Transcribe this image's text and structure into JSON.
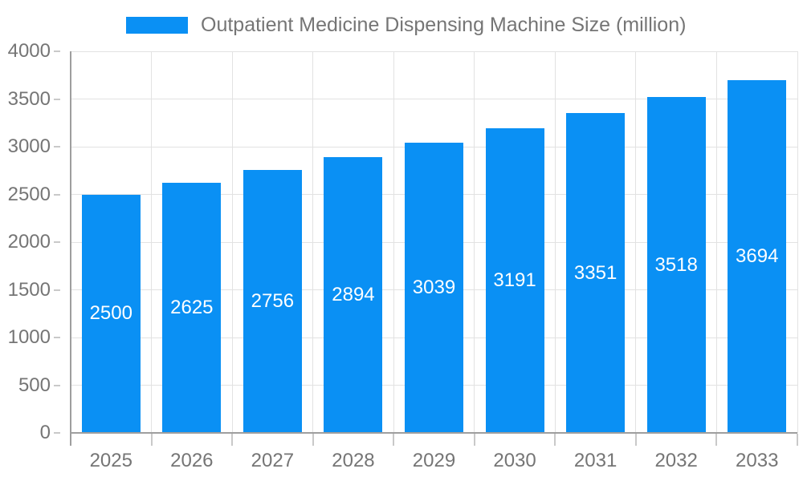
{
  "chart_data": {
    "type": "bar",
    "title": "Outpatient Medicine Dispensing Machine Size (million)",
    "legend": {
      "label": "Outpatient Medicine Dispensing Machine Size (million)",
      "position": "top"
    },
    "categories": [
      "2025",
      "2026",
      "2027",
      "2028",
      "2029",
      "2030",
      "2031",
      "2032",
      "2033"
    ],
    "values": [
      2500,
      2625,
      2756,
      2894,
      3039,
      3191,
      3351,
      3518,
      3694
    ],
    "value_labels": [
      "2500",
      "2625",
      "2756",
      "2894",
      "3039",
      "3191",
      "3351",
      "3518",
      "3694"
    ],
    "value_labels_position": "inside-center",
    "xlabel": "",
    "ylabel": "",
    "ylim": [
      0,
      4000
    ],
    "yticks": [
      0,
      500,
      1000,
      1500,
      2000,
      2500,
      3000,
      3500,
      4000
    ],
    "grid": true,
    "colors": {
      "bar": "#0A90F4",
      "bar_label": "#FFFFFF",
      "axis": "#9E9E9E",
      "grid": "#E2E2E2",
      "tick": "#C9C9C9",
      "text": "#757575",
      "background": "#FFFFFF"
    }
  }
}
